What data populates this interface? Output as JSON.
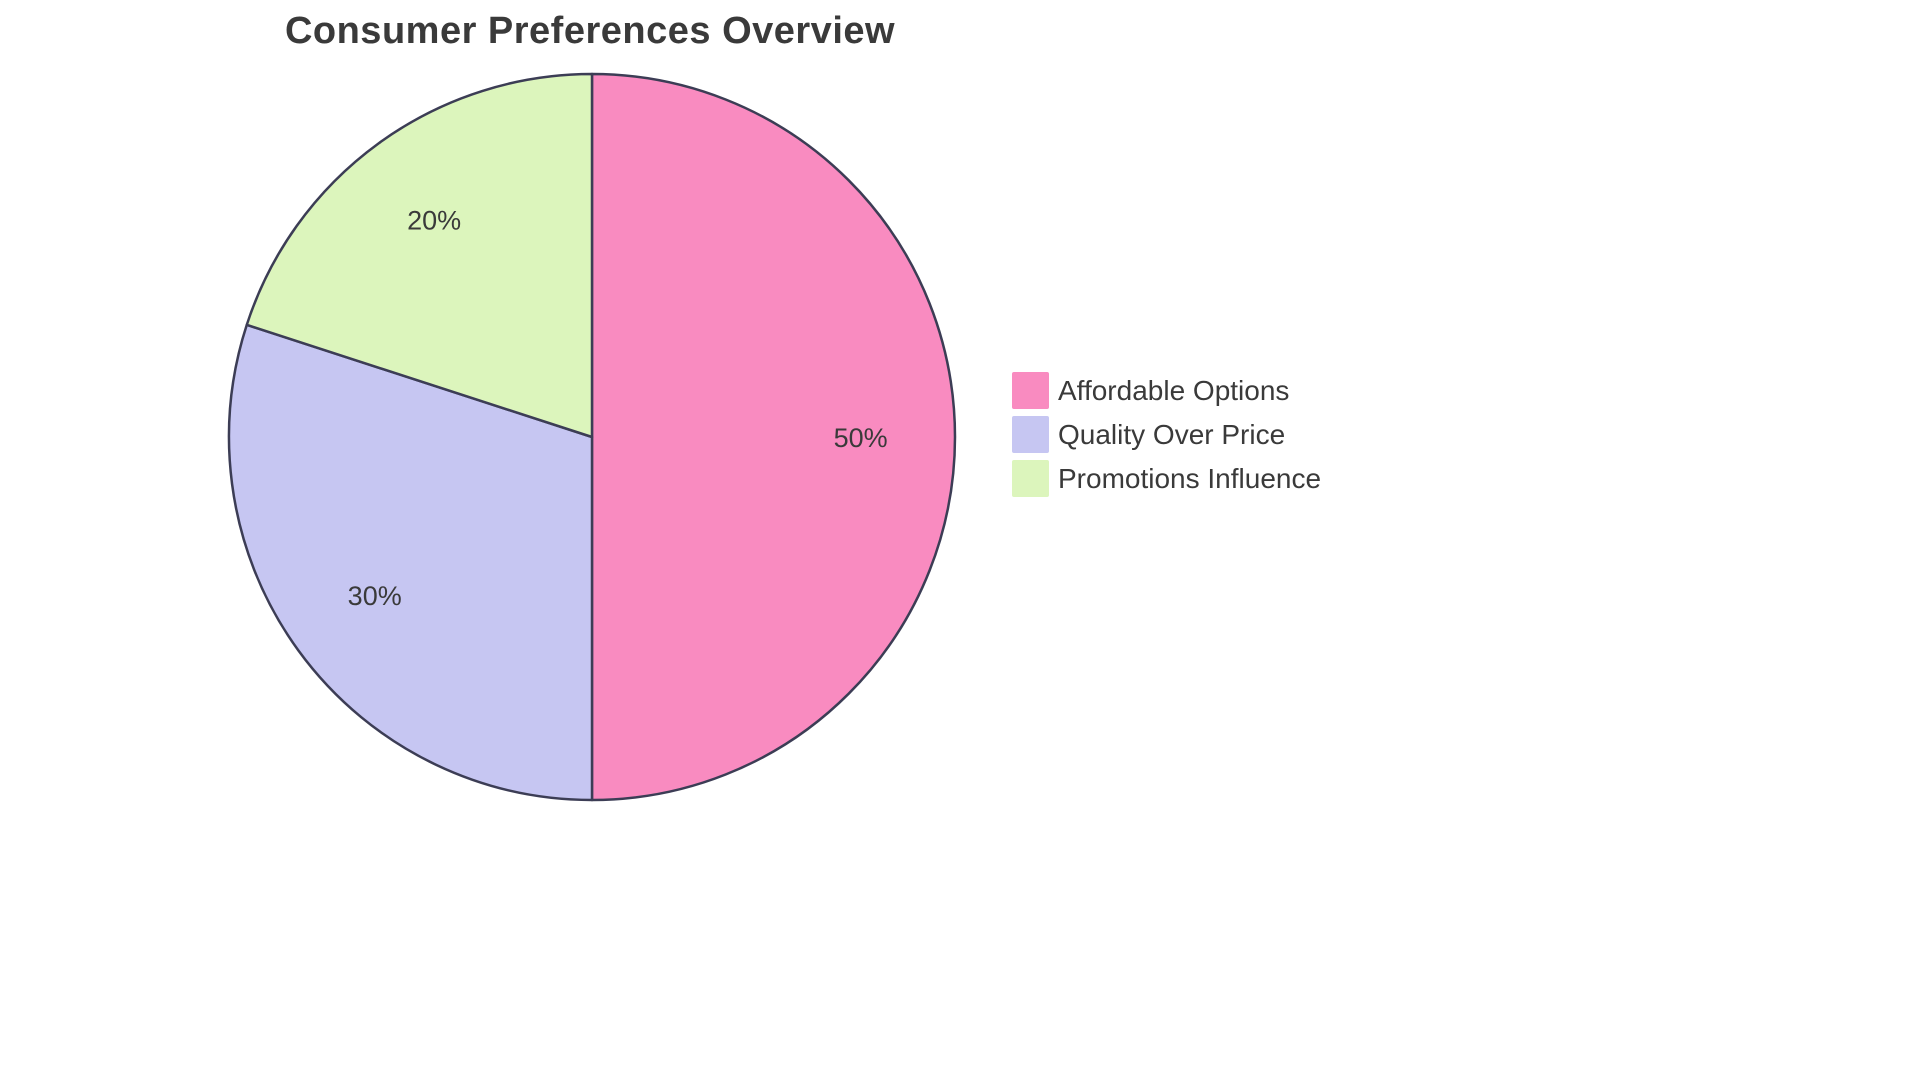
{
  "title": "Consumer Preferences Overview",
  "chart_data": {
    "type": "pie",
    "title": "Consumer Preferences Overview",
    "labels": [
      "Affordable Options",
      "Quality Over Price",
      "Promotions Influence"
    ],
    "values": [
      50,
      30,
      20
    ],
    "value_labels": [
      "50%",
      "30%",
      "20%"
    ],
    "colors": [
      "#F98BC0",
      "#C6C6F2",
      "#DCF5BC"
    ],
    "stroke_color": "#3C3D55",
    "label_color": "#3A3A3A",
    "start_angle_deg": 0,
    "direction": "clockwise",
    "legend_position": "right",
    "background": "#FFFFFF"
  },
  "legend": {
    "items": [
      {
        "label": "Affordable Options"
      },
      {
        "label": "Quality Over Price"
      },
      {
        "label": "Promotions Influence"
      }
    ]
  }
}
